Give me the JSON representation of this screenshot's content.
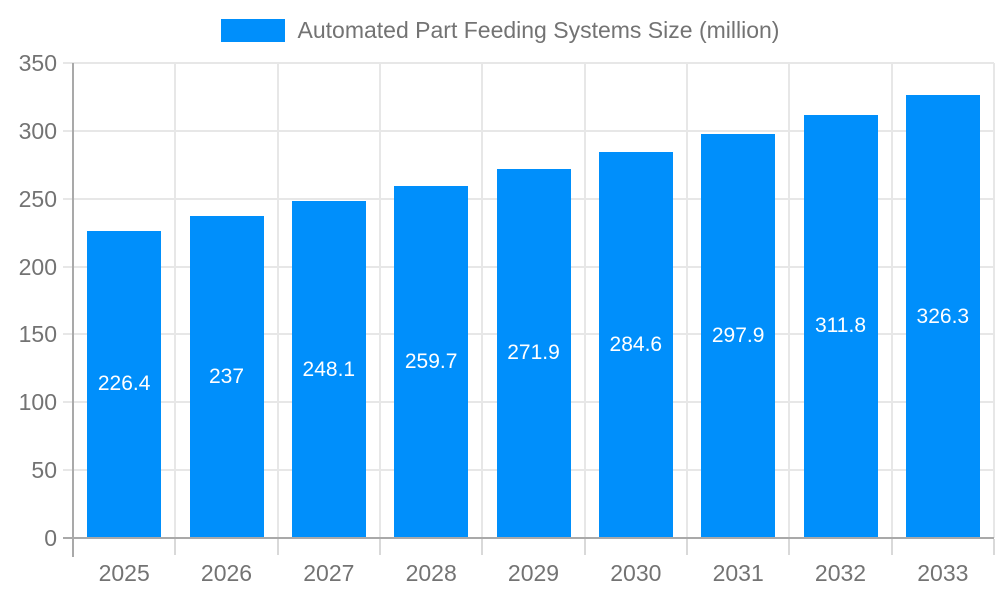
{
  "legend": {
    "label": "Automated Part Feeding Systems Size (million)"
  },
  "colors": {
    "bar": "#008FFB",
    "grid": "#e7e7e7",
    "axis": "#a9a9a9",
    "tick": "#d9d9d9",
    "axis_label": "#737373",
    "value_label": "#ffffff",
    "background": "#ffffff"
  },
  "chart_data": {
    "type": "bar",
    "title": "Automated Part Feeding Systems Size (million)",
    "categories": [
      "2025",
      "2026",
      "2027",
      "2028",
      "2029",
      "2030",
      "2031",
      "2032",
      "2033"
    ],
    "values": [
      226.4,
      237,
      248.1,
      259.7,
      271.9,
      284.6,
      297.9,
      311.8,
      326.3
    ],
    "series": [
      {
        "name": "Automated Part Feeding Systems Size (million)",
        "values": [
          226.4,
          237,
          248.1,
          259.7,
          271.9,
          284.6,
          297.9,
          311.8,
          326.3
        ]
      }
    ],
    "xlabel": "",
    "ylabel": "",
    "ylim": [
      0,
      350
    ],
    "yticks": [
      0,
      50,
      100,
      150,
      200,
      250,
      300,
      350
    ],
    "grid": true,
    "legend_position": "top-center",
    "value_label_position": "inside-center"
  }
}
